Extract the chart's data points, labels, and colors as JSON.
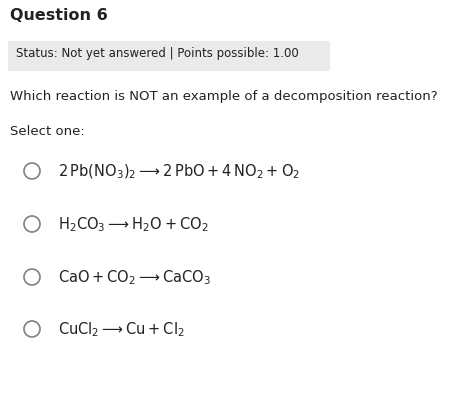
{
  "title": "Question 6",
  "status_text": "Status: Not yet answered | Points possible: 1.00",
  "question_text": "Which reaction is NOT an example of a decomposition reaction?",
  "select_text": "Select one:",
  "math_options": [
    "$\\mathregular{2\\,Pb(NO_3)_2 \\longrightarrow 2\\,PbO + 4\\,NO_2 + O_2}$",
    "$\\mathregular{H_2CO_3 \\longrightarrow H_2O + CO_2}$",
    "$\\mathregular{CaO + CO_2 \\longrightarrow CaCO_3}$",
    "$\\mathregular{CuCl_2 \\longrightarrow Cu + Cl_2}$"
  ],
  "bg_color": "#ffffff",
  "status_bg": "#eaeaea",
  "text_color": "#222222",
  "circle_color": "#888888",
  "title_fontsize": 11.5,
  "status_fontsize": 8.5,
  "question_fontsize": 9.5,
  "select_fontsize": 9.5,
  "option_fontsize": 10.5,
  "fig_width": 4.72,
  "fig_height": 4.1,
  "dpi": 100
}
